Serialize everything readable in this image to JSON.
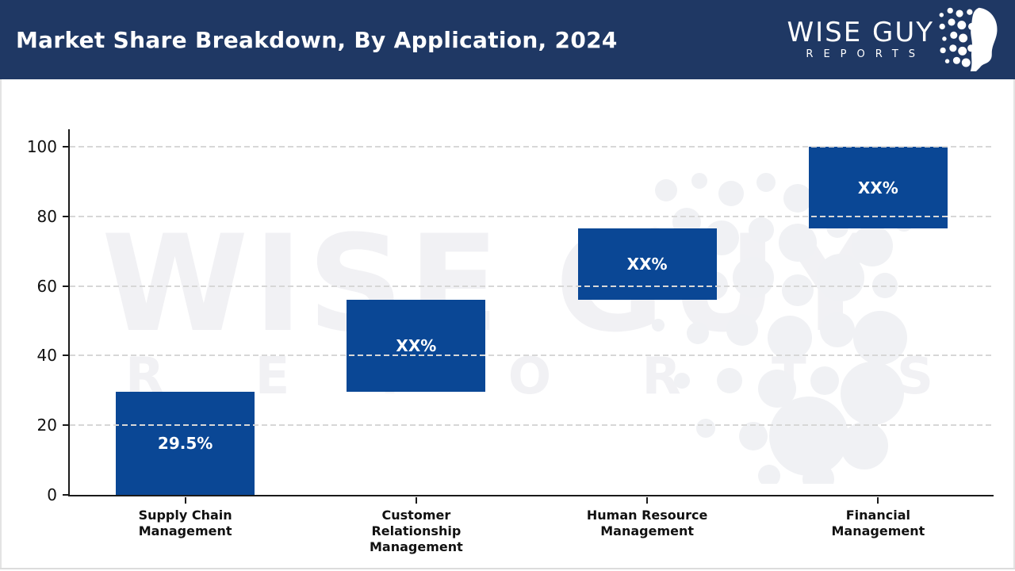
{
  "header": {
    "title": "Market Share Breakdown, By Application, 2024",
    "bg_color": "#1f3864",
    "logo": {
      "line1": "WISE GUY",
      "line2": "REPORTS",
      "icon": "dotted-face-profile"
    }
  },
  "watermark": {
    "line1": "WISE GUY",
    "line2": "R E P O R T S",
    "icon": "dotted-face-profile"
  },
  "chart_data": {
    "type": "bar",
    "subtype": "waterfall",
    "title": "Market Share Breakdown, By Application, 2024",
    "categories": [
      "Supply Chain Management",
      "Customer Relationship Management",
      "Human Resource Management",
      "Financial Management"
    ],
    "categories_lines": [
      [
        "Supply Chain",
        "Management"
      ],
      [
        "Customer",
        "Relationship",
        "Management"
      ],
      [
        "Human Resource",
        "Management"
      ],
      [
        "Financial",
        "Management"
      ]
    ],
    "series": [
      {
        "name": "Market Share %",
        "starts": [
          0,
          29.5,
          56,
          76.5
        ],
        "ends": [
          29.5,
          56,
          76.5,
          100
        ]
      }
    ],
    "bar_value_labels": [
      "29.5%",
      "XX%",
      "XX%",
      "XX%"
    ],
    "xlabel": "",
    "ylabel": "",
    "ylim": [
      0,
      105
    ],
    "yticks": [
      0,
      20,
      40,
      60,
      80,
      100
    ],
    "grid": "horizontal-dashed",
    "grid_color": "#d7d7d7",
    "bar_color": "#0a4795",
    "bar_label_color": "#ffffff",
    "axis_color": "#1a1a1a",
    "legend": "none"
  }
}
